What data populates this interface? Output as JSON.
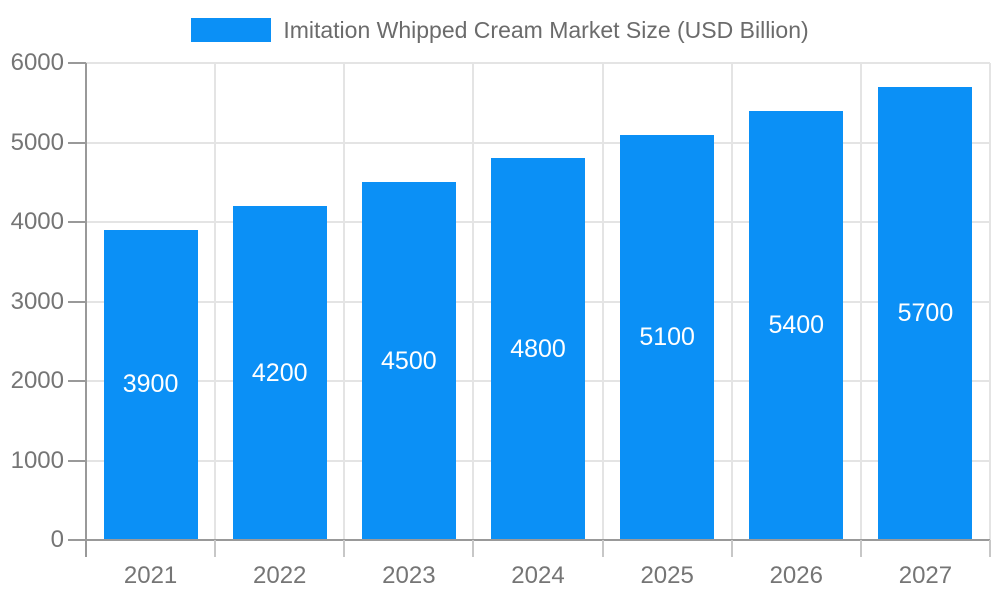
{
  "legend": {
    "label": "Imitation Whipped Cream Market Size (USD Billion)"
  },
  "chart_data": {
    "type": "bar",
    "title": "Imitation Whipped Cream Market Size (USD Billion)",
    "categories": [
      "2021",
      "2022",
      "2023",
      "2024",
      "2025",
      "2026",
      "2027"
    ],
    "series": [
      {
        "name": "Imitation Whipped Cream Market Size (USD Billion)",
        "values": [
          3900,
          4200,
          4500,
          4800,
          5100,
          5400,
          5700
        ]
      }
    ],
    "xlabel": "",
    "ylabel": "",
    "ylim": [
      0,
      6000
    ],
    "yticks": [
      0,
      1000,
      2000,
      3000,
      4000,
      5000,
      6000
    ],
    "grid": true,
    "legend_position": "top",
    "value_labels_inside_bars": true,
    "colors": {
      "bar": "#0b90f6",
      "bar_value_label": "#ffffff",
      "axis_line": "#999999",
      "tick": "#c7c7c7",
      "gridline": "#e4e4e4",
      "tick_label": "#757575",
      "legend_text": "#6b6b6b",
      "background": "#ffffff"
    }
  }
}
